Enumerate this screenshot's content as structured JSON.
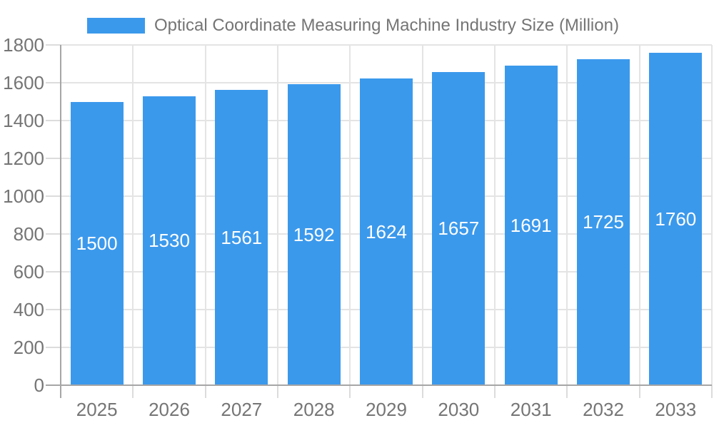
{
  "legend": {
    "label": "Optical Coordinate Measuring Machine Industry Size (Million)",
    "swatch_color": "#3b99ec"
  },
  "chart_data": {
    "type": "bar",
    "title": "Optical Coordinate Measuring Machine Industry Size (Million)",
    "categories": [
      "2025",
      "2026",
      "2027",
      "2028",
      "2029",
      "2030",
      "2031",
      "2032",
      "2033"
    ],
    "values": [
      1500,
      1530,
      1561,
      1592,
      1624,
      1657,
      1691,
      1725,
      1760
    ],
    "xlabel": "",
    "ylabel": "",
    "ylim": [
      0,
      1800
    ],
    "yticks": [
      0,
      200,
      400,
      600,
      800,
      1000,
      1200,
      1400,
      1600,
      1800
    ],
    "grid": true,
    "legend_position": "top-left",
    "bar_color": "#3b99ec",
    "bar_label_color": "#ffffff",
    "axis_color": "#a6a6a6",
    "grid_color": "#e4e4e4",
    "text_color": "#757575"
  }
}
